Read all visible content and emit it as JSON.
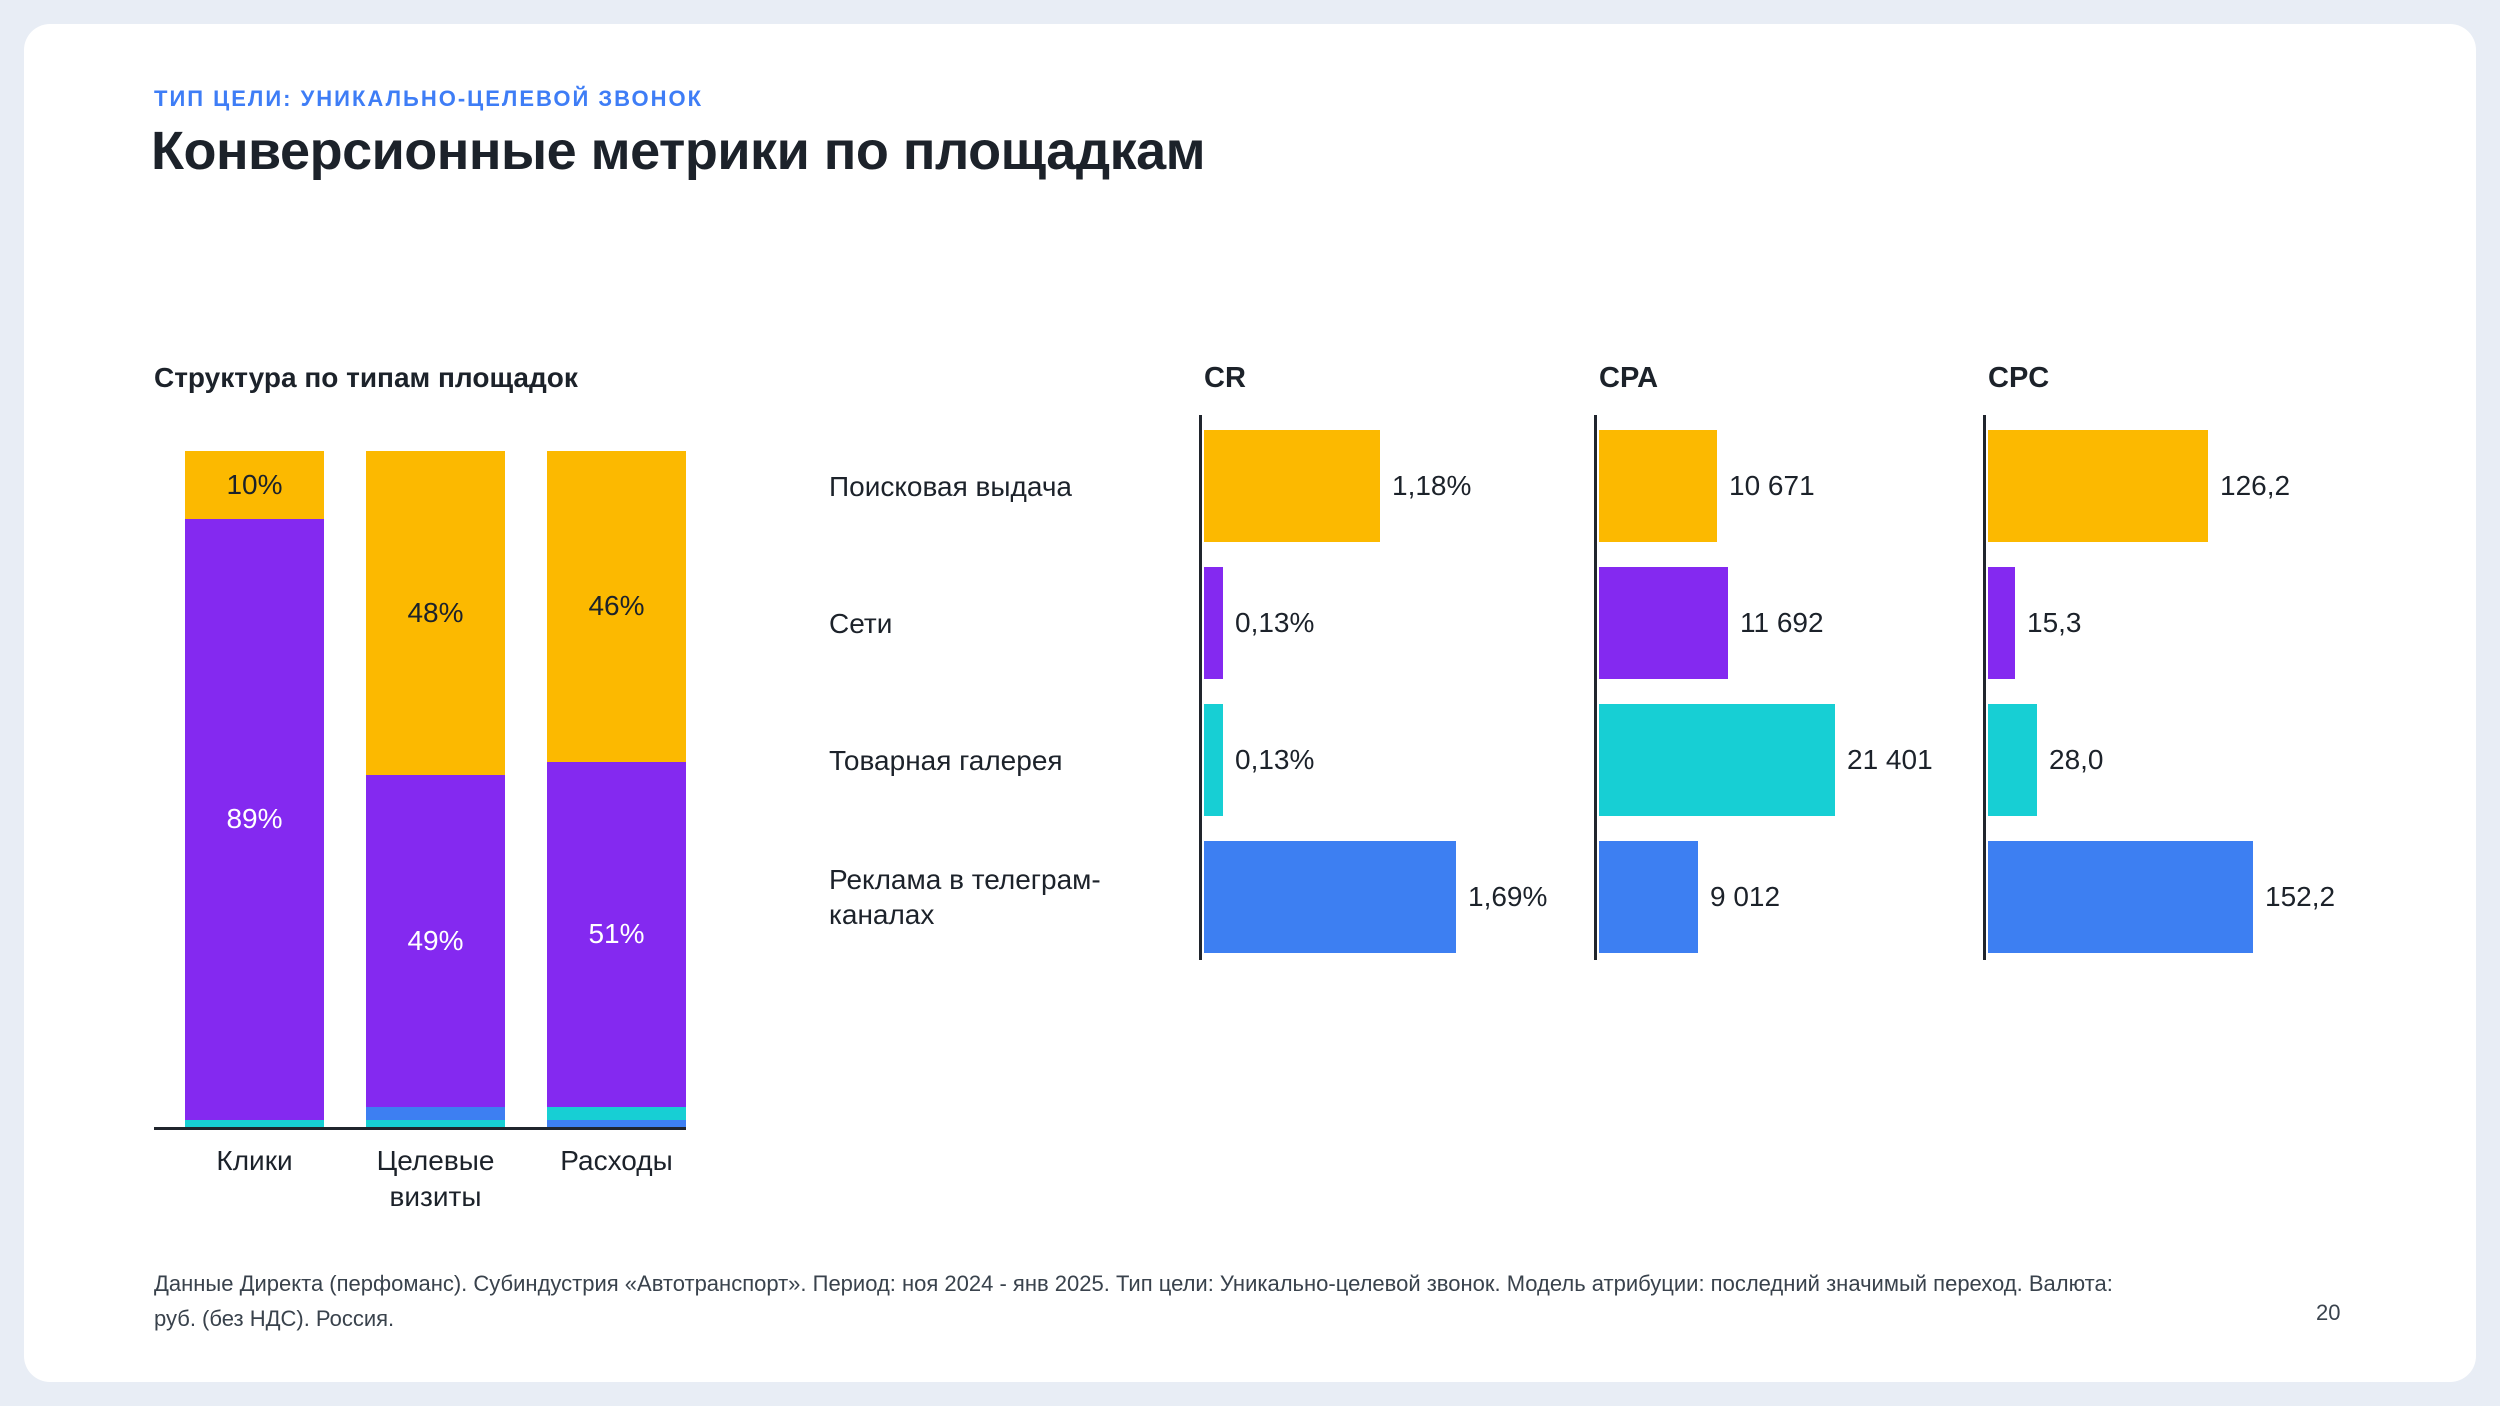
{
  "page": {
    "eyebrow": "ТИП ЦЕЛИ: УНИКАЛЬНО-ЦЕЛЕВОЙ ЗВОНОК",
    "title": "Конверсионные метрики по площадкам",
    "footer": "Данные Директа (перфоманс). Субиндустрия «Автотранспорт». Период: ноя 2024 - янв 2025. Тип цели: Уникально-целевой звонок. Модель атрибуции: последний значимый переход. Валюта: руб. (без НДС). Россия.",
    "page_number": "20"
  },
  "colors": {
    "search": "#FCB900",
    "networks": "#8429F0",
    "gallery": "#17CFD4",
    "telegram": "#3D7FF2",
    "background": "#E8EDF5",
    "card": "#FFFFFF",
    "axis": "#20252D",
    "eyebrow_text": "#3E7DF6",
    "title_text": "#1C222A"
  },
  "platforms": [
    {
      "name": "Поисковая выдача",
      "color": "search"
    },
    {
      "name": "Сети",
      "color": "networks"
    },
    {
      "name": "Товарная галерея",
      "color": "gallery"
    },
    {
      "name": "Реклама в телеграм-каналах",
      "color": "telegram"
    }
  ],
  "chart_data": [
    {
      "type": "bar",
      "subtype": "stacked-vertical-percent",
      "title": "Структура по типам площадок",
      "unit": "%",
      "categories": [
        "Клики",
        "Целевые визиты",
        "Расходы"
      ],
      "columns": [
        {
          "category": "Клики",
          "segments": [
            {
              "platform": "Поисковая выдача",
              "color": "search",
              "value": 10,
              "label": "10%",
              "label_tone": "dark"
            },
            {
              "platform": "Сети",
              "color": "networks",
              "value": 89,
              "label": "89%",
              "label_tone": "light"
            },
            {
              "platform": "Товарная галерея",
              "color": "gallery",
              "value": 1,
              "label": "",
              "label_tone": ""
            }
          ]
        },
        {
          "category": "Целевые визиты",
          "segments": [
            {
              "platform": "Поисковая выдача",
              "color": "search",
              "value": 48,
              "label": "48%",
              "label_tone": "dark"
            },
            {
              "platform": "Сети",
              "color": "networks",
              "value": 49,
              "label": "49%",
              "label_tone": "light"
            },
            {
              "platform": "Реклама в телеграм-каналах",
              "color": "telegram",
              "value": 2,
              "label": "",
              "label_tone": ""
            },
            {
              "platform": "Товарная галерея",
              "color": "gallery",
              "value": 1,
              "label": "",
              "label_tone": ""
            }
          ]
        },
        {
          "category": "Расходы",
          "segments": [
            {
              "platform": "Поисковая выдача",
              "color": "search",
              "value": 46,
              "label": "46%",
              "label_tone": "dark"
            },
            {
              "platform": "Сети",
              "color": "networks",
              "value": 51,
              "label": "51%",
              "label_tone": "light"
            },
            {
              "platform": "Товарная галерея",
              "color": "gallery",
              "value": 2,
              "label": "",
              "label_tone": ""
            },
            {
              "platform": "Реклама в телеграм-каналах",
              "color": "telegram",
              "value": 1,
              "label": "",
              "label_tone": ""
            }
          ]
        }
      ]
    },
    {
      "type": "bar",
      "subtype": "horizontal",
      "title": "CR",
      "categories": [
        "Поисковая выдача",
        "Сети",
        "Товарная галерея",
        "Реклама в телеграм-каналах"
      ],
      "values": [
        1.18,
        0.13,
        0.13,
        1.69
      ],
      "labels": [
        "1,18%",
        "0,13%",
        "0,13%",
        "1,69%"
      ],
      "colors": [
        "search",
        "networks",
        "gallery",
        "telegram"
      ]
    },
    {
      "type": "bar",
      "subtype": "horizontal",
      "title": "CPA",
      "categories": [
        "Поисковая выдача",
        "Сети",
        "Товарная галерея",
        "Реклама в телеграм-каналах"
      ],
      "values": [
        10671,
        11692,
        21401,
        9012
      ],
      "labels": [
        "10 671",
        "11 692",
        "21 401",
        "9 012"
      ],
      "colors": [
        "search",
        "networks",
        "gallery",
        "telegram"
      ]
    },
    {
      "type": "bar",
      "subtype": "horizontal",
      "title": "CPC",
      "categories": [
        "Поисковая выдача",
        "Сети",
        "Товарная галерея",
        "Реклама в телеграм-каналах"
      ],
      "values": [
        126.2,
        15.3,
        28.0,
        152.2
      ],
      "labels": [
        "126,2",
        "15,3",
        "28,0",
        "152,2"
      ],
      "colors": [
        "search",
        "networks",
        "gallery",
        "telegram"
      ]
    }
  ]
}
